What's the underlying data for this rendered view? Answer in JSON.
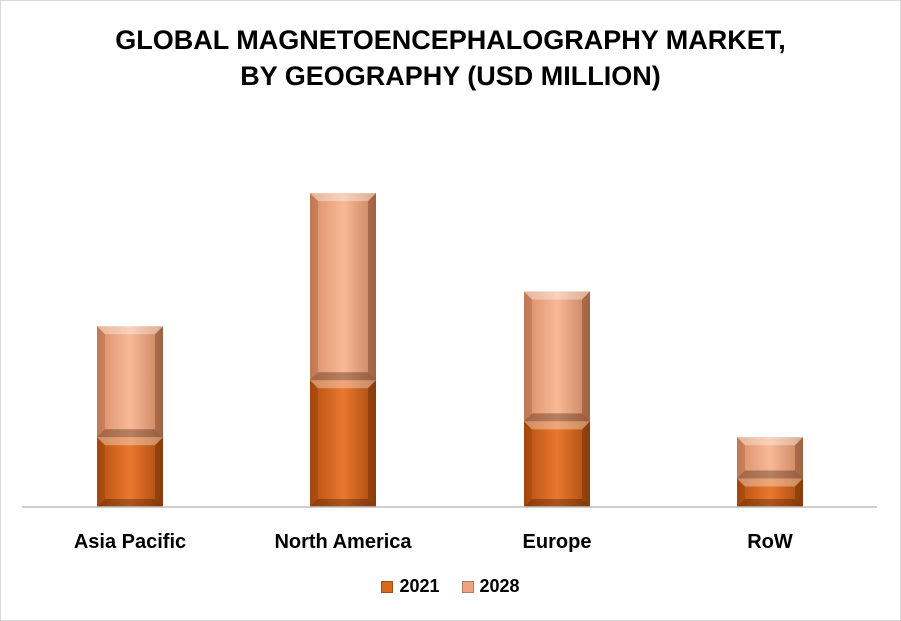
{
  "chart_data": {
    "type": "bar",
    "stacked": true,
    "title_lines": [
      "GLOBAL MAGNETOENCEPHALOGRAPHY MARKET,",
      "BY GEOGRAPHY (USD MILLION)"
    ],
    "categories": [
      "Asia Pacific",
      "North America",
      "Europe",
      "RoW"
    ],
    "series": [
      {
        "name": "2021",
        "values": [
          22,
          40,
          27,
          9
        ],
        "color": "#e0702a"
      },
      {
        "name": "2028",
        "values": [
          35,
          59,
          41,
          13
        ],
        "color": "#f4b08c"
      }
    ],
    "ylim": [
      0,
      100
    ],
    "grid": false,
    "legend_position": "bottom"
  }
}
